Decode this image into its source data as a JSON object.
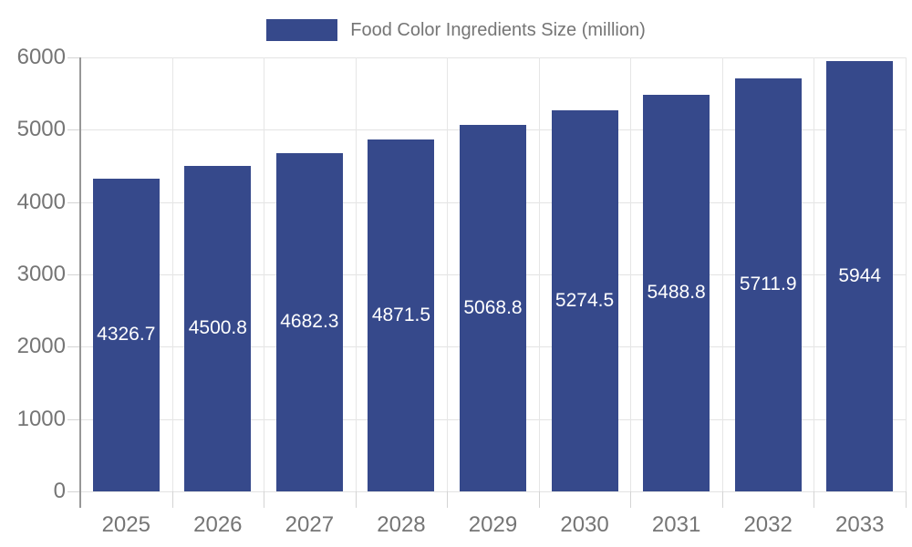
{
  "colors": {
    "bar": "#36498B",
    "axis_text": "#757575",
    "bar_label_text": "#ffffff",
    "gridline": "#e6e6e6",
    "axis_line": "#979797"
  },
  "legend": {
    "label": "Food Color Ingredients Size (million)"
  },
  "chart_data": {
    "type": "bar",
    "title": "Food Color Ingredients Size (million)",
    "categories": [
      "2025",
      "2026",
      "2027",
      "2028",
      "2029",
      "2030",
      "2031",
      "2032",
      "2033"
    ],
    "values": [
      4326.7,
      4500.8,
      4682.3,
      4871.5,
      5068.8,
      5274.5,
      5488.8,
      5711.9,
      5944
    ],
    "xlabel": "",
    "ylabel": "",
    "ylim": [
      0,
      6000
    ],
    "yticks": [
      0,
      1000,
      2000,
      3000,
      4000,
      5000,
      6000
    ],
    "grid": true,
    "legend_position": "top",
    "bar_label_position": "inside-center"
  }
}
